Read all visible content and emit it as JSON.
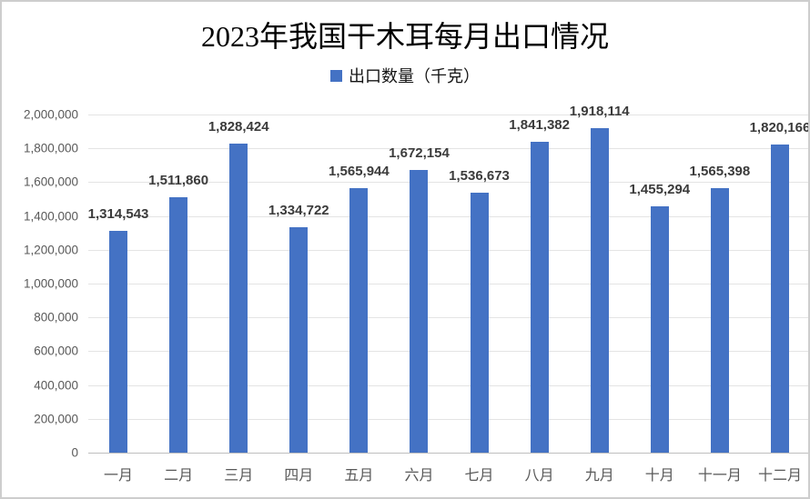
{
  "chart": {
    "title": "2023年我国干木耳每月出口情况",
    "legend_label": "出口数量（千克）"
  },
  "chart_data": {
    "type": "bar",
    "title": "2023年我国干木耳每月出口情况",
    "legend": "出口数量（千克）",
    "legend_position": "top",
    "categories": [
      "一月",
      "二月",
      "三月",
      "四月",
      "五月",
      "六月",
      "七月",
      "八月",
      "九月",
      "十月",
      "十一月",
      "十二月"
    ],
    "values": [
      1314543,
      1511860,
      1828424,
      1334722,
      1565944,
      1672154,
      1536673,
      1841382,
      1918114,
      1455294,
      1565398,
      1820166
    ],
    "data_labels": [
      "1,314,543",
      "1,511,860",
      "1,828,424",
      "1,334,722",
      "1,565,944",
      "1,672,154",
      "1,536,673",
      "1,841,382",
      "1,918,114",
      "1,455,294",
      "1,565,398",
      "1,820,166"
    ],
    "xlabel": "",
    "ylabel": "",
    "ylim": [
      0,
      2000000
    ],
    "ytick_step": 200000,
    "yticks": [
      "0",
      "200,000",
      "400,000",
      "600,000",
      "800,000",
      "1,000,000",
      "1,200,000",
      "1,400,000",
      "1,600,000",
      "1,800,000",
      "2,000,000"
    ],
    "grid": true,
    "bar_color": "#4472C4",
    "grid_color": "#e4e4e4",
    "axis_line_color": "#bfbfbf",
    "label_color": "#3b3b3b",
    "tick_color": "#595959"
  }
}
